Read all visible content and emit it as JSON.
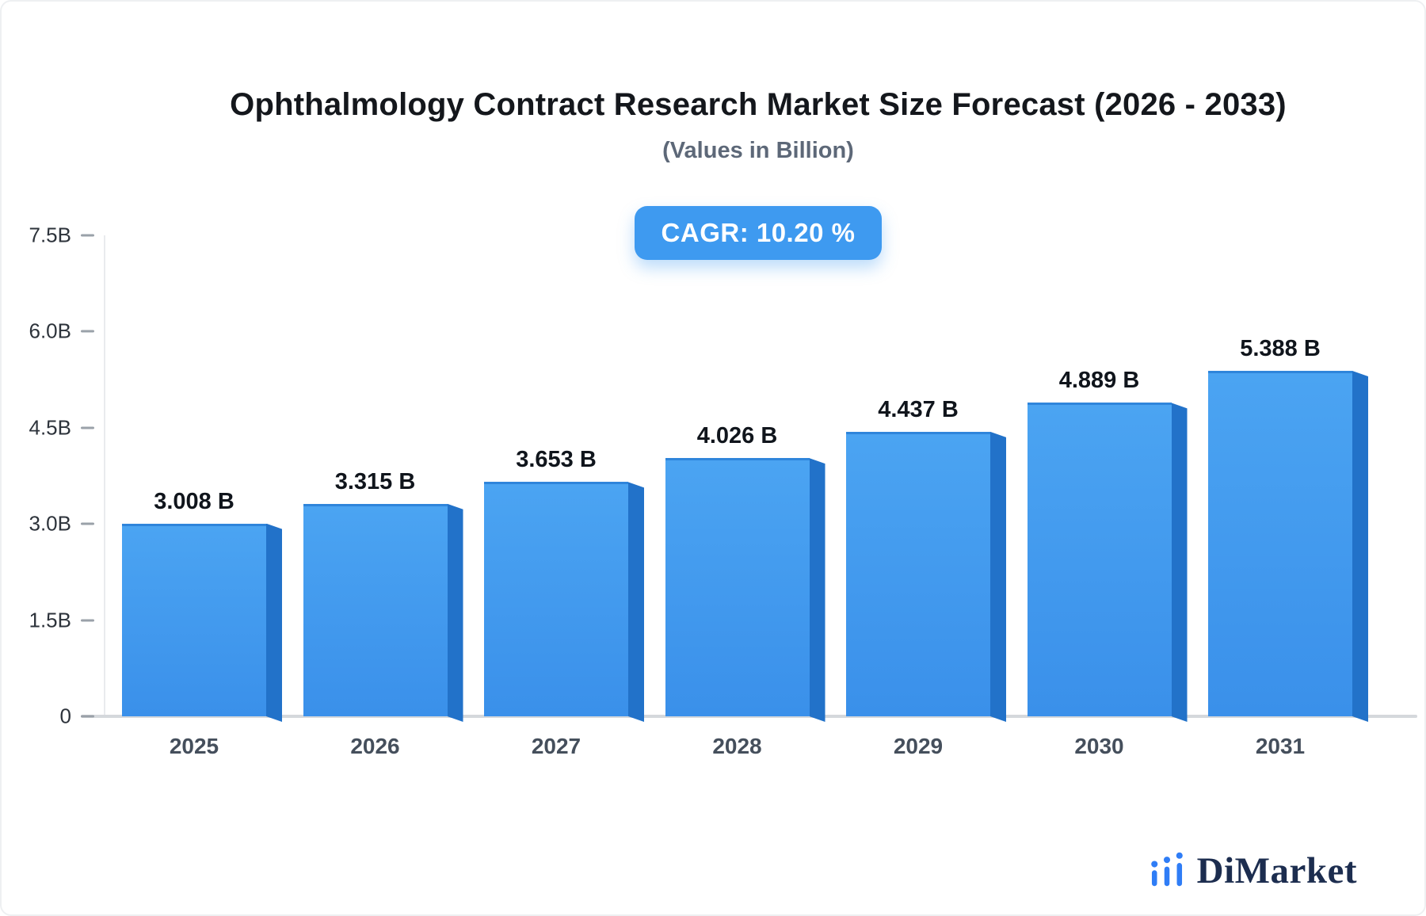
{
  "chart_data": {
    "type": "bar",
    "title": "Ophthalmology Contract Research Market Size Forecast (2026 - 2033)",
    "subtitle": "(Values in Billion)",
    "badge": "CAGR: 10.20 %",
    "categories": [
      "2025",
      "2026",
      "2027",
      "2028",
      "2029",
      "2030",
      "2031"
    ],
    "values": [
      3.008,
      3.315,
      3.653,
      4.026,
      4.437,
      4.889,
      5.388
    ],
    "value_labels": [
      "3.008 B",
      "3.315 B",
      "3.653 B",
      "4.026 B",
      "4.437 B",
      "4.889 B",
      "5.388 B"
    ],
    "xlabel": "",
    "ylabel": "",
    "ylim": [
      0,
      7.5
    ],
    "yticks": [
      0,
      1.5,
      3.0,
      4.5,
      6.0,
      7.5
    ],
    "ytick_labels": [
      "0",
      "1.5B",
      "3.0B",
      "4.5B",
      "6.0B",
      "7.5B"
    ],
    "grid": false,
    "legend": "none",
    "badge_color": "#3e9af0",
    "bar_color_top": "#4ba4f2",
    "bar_color_bottom": "#3a90ea",
    "bar_edge_color": "#2f85db",
    "bar_side_color": "#2272c9"
  },
  "branding": {
    "logo_text": "DiMarket",
    "logo_color": "#1c2d4f",
    "icon_color": "#2f7df6"
  }
}
